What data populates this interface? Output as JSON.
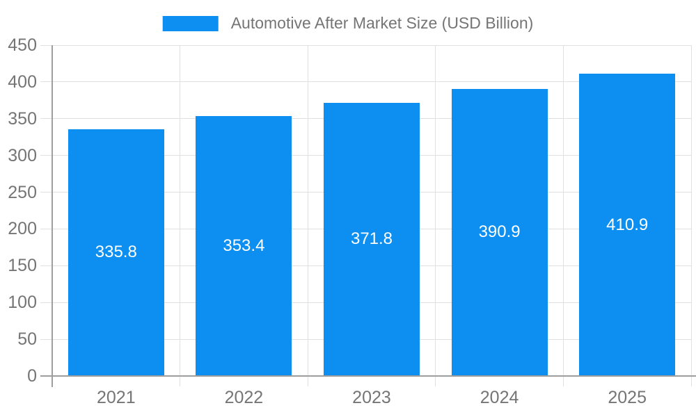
{
  "legend": {
    "position": "top",
    "swatch_color": "#0d8ff2"
  },
  "chart_data": {
    "type": "bar",
    "title": "Automotive After Market Size (USD Billion)",
    "series_name": "Automotive After Market Size (USD Billion)",
    "categories": [
      "2021",
      "2022",
      "2023",
      "2024",
      "2025"
    ],
    "values": [
      335.8,
      353.4,
      371.8,
      390.9,
      410.9
    ],
    "data_labels": [
      "335.8",
      "353.4",
      "371.8",
      "390.9",
      "410.9"
    ],
    "xlabel": "",
    "ylabel": "",
    "ylim": [
      0,
      450
    ],
    "yticks": [
      0,
      50,
      100,
      150,
      200,
      250,
      300,
      350,
      400,
      450
    ],
    "ytick_labels": [
      "0",
      "50",
      "100",
      "150",
      "200",
      "250",
      "300",
      "350",
      "400",
      "450"
    ],
    "grid": true,
    "legend_position": "top",
    "bar_color": "#0d8ff2",
    "value_label_color": "#ffffff",
    "axis_text_color": "#757575",
    "axis_line_color": "#9e9e9e",
    "grid_color": "#e0e0e0"
  }
}
